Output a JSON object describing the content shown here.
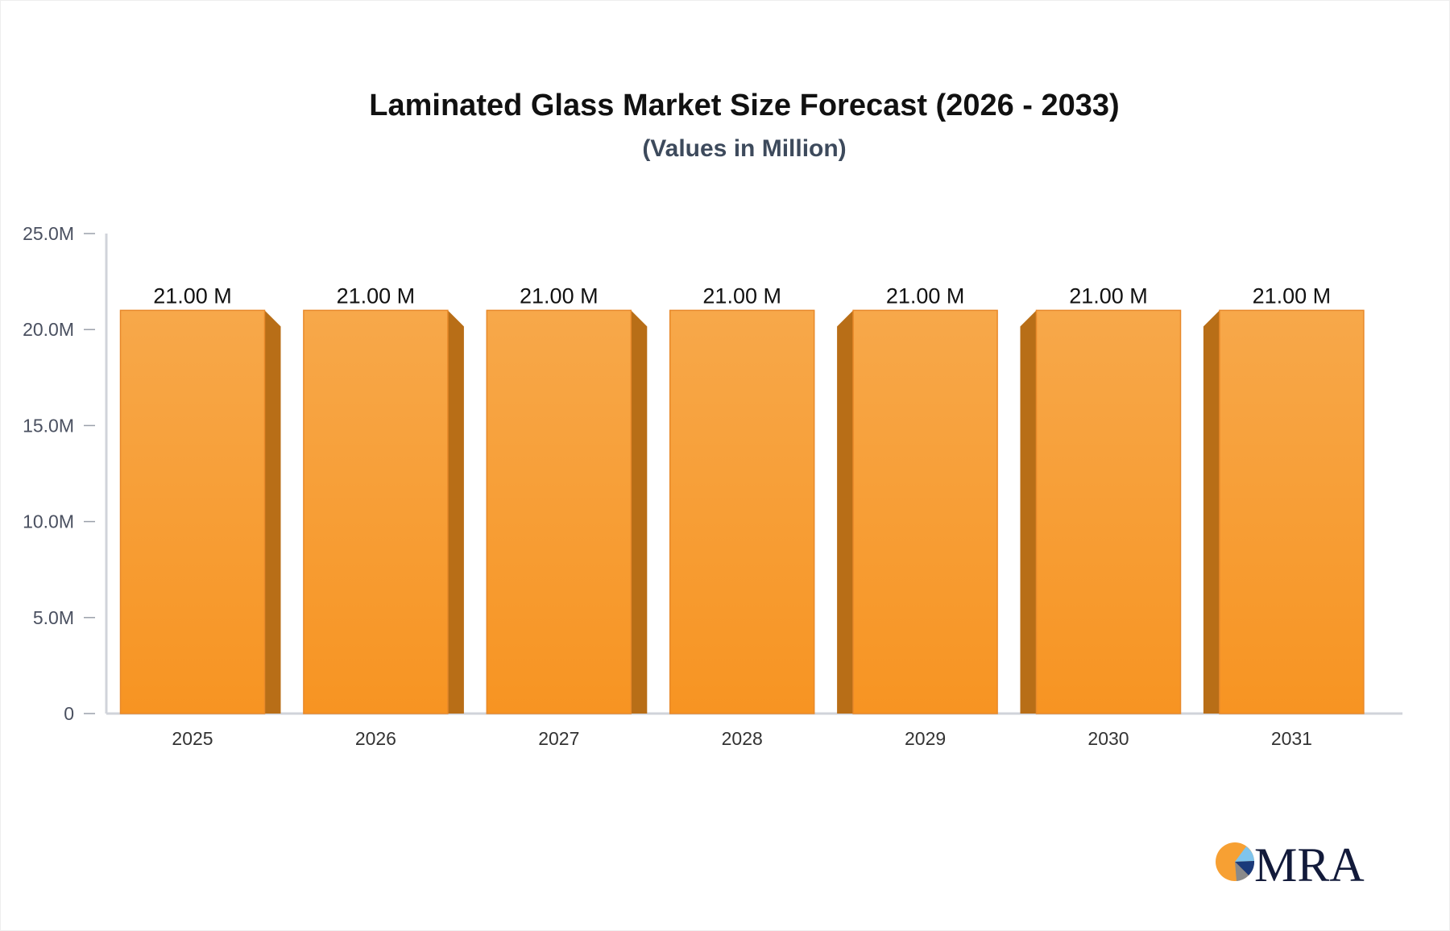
{
  "chart_data": {
    "type": "bar",
    "title": "Laminated Glass Market Size Forecast (2026 - 2033)",
    "subtitle": "(Values in Million)",
    "categories": [
      "2025",
      "2026",
      "2027",
      "2028",
      "2029",
      "2030",
      "2031"
    ],
    "values": [
      21.0,
      21.0,
      21.0,
      21.0,
      21.0,
      21.0,
      21.0
    ],
    "data_labels": [
      "21.00 M",
      "21.00 M",
      "21.00 M",
      "21.00 M",
      "21.00 M",
      "21.00 M",
      "21.00 M"
    ],
    "ylim": [
      0,
      25
    ],
    "yticks": [
      0,
      5,
      10,
      15,
      20,
      25
    ],
    "ytick_labels": [
      "0",
      "5.0M",
      "10.0M",
      "15.0M",
      "20.0M",
      "25.0M"
    ],
    "grid": false,
    "bar_color": "#f7a03a",
    "bar_side_color": "#b86e17"
  },
  "logo": {
    "text": "MRA"
  }
}
